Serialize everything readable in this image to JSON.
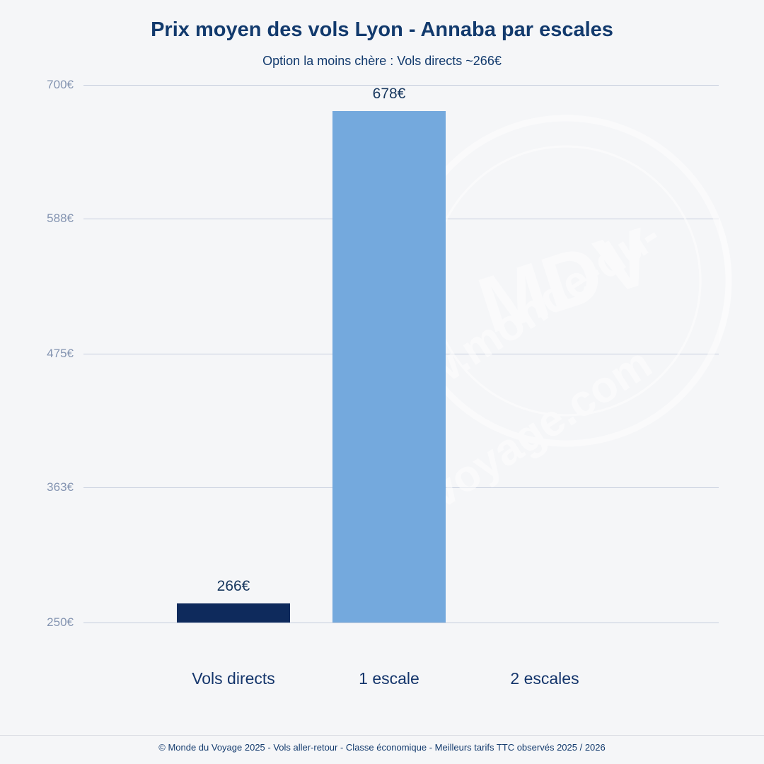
{
  "header": {
    "title": "Prix moyen des vols Lyon - Annaba par escales",
    "subtitle": "Option la moins chère : Vols directs ~266€"
  },
  "watermark": {
    "line1": "www.monde-du-",
    "line2": "voyage.com",
    "monogram": "MDV"
  },
  "footer": {
    "text": "© Monde du Voyage 2025 - Vols aller-retour - Classe économique - Meilleurs tarifs TTC observés 2025 / 2026"
  },
  "colors": {
    "background": "#f5f6f8",
    "title_text": "#123a6d",
    "axis_text": "#8494b1",
    "gridline": "#c6cedd",
    "bar_direct": "#0e2a5c",
    "bar_stop": "#74a9dd"
  },
  "chart_data": {
    "type": "bar",
    "title": "Prix moyen des vols Lyon - Annaba par escales",
    "subtitle": "Option la moins chère : Vols directs ~266€",
    "categories": [
      "Vols directs",
      "1 escale",
      "2 escales"
    ],
    "values": [
      266,
      678,
      null
    ],
    "value_labels": [
      "266€",
      "678€",
      ""
    ],
    "bar_colors": [
      "#0e2a5c",
      "#74a9dd",
      "#74a9dd"
    ],
    "xlabel": "",
    "ylabel": "",
    "ylim": [
      250,
      700
    ],
    "yticks": [
      250,
      363,
      475,
      588,
      700
    ],
    "ytick_labels": [
      "250€",
      "363€",
      "475€",
      "588€",
      "700€"
    ],
    "grid": true,
    "legend": false
  }
}
